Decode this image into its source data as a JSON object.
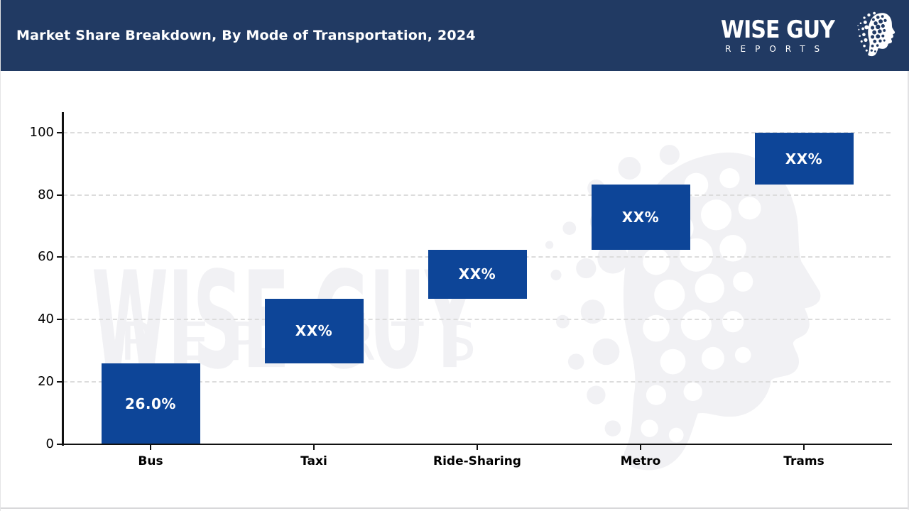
{
  "header": {
    "title": "Market Share Breakdown, By Mode of Transportation, 2024",
    "background_color": "#213a63",
    "logo": {
      "wordmark": "WISE GUY",
      "subtitle": "REPORTS"
    }
  },
  "watermark": {
    "wordmark": "WISE GUY",
    "subtitle": "REPORTS"
  },
  "chart_data": {
    "type": "bar",
    "subtype": "waterfall-floating-bars",
    "title": "Market Share Breakdown, By Mode of Transportation, 2024",
    "categories": [
      "Bus",
      "Taxi",
      "Ride-Sharing",
      "Metro",
      "Trams"
    ],
    "bars": [
      {
        "category": "Bus",
        "start": 0,
        "end": 26,
        "label": "26.0%"
      },
      {
        "category": "Taxi",
        "start": 26,
        "end": 46.7,
        "label": "XX%"
      },
      {
        "category": "Ride-Sharing",
        "start": 46.7,
        "end": 62.4,
        "label": "XX%"
      },
      {
        "category": "Metro",
        "start": 62.4,
        "end": 83.2,
        "label": "XX%"
      },
      {
        "category": "Trams",
        "start": 83.2,
        "end": 100,
        "label": "XX%"
      }
    ],
    "y_ticks": [
      0,
      20,
      40,
      60,
      80,
      100
    ],
    "ylim": [
      0,
      105
    ],
    "bar_color": "#0d4598",
    "grid": "horizontal-dashed",
    "legend": "none"
  }
}
